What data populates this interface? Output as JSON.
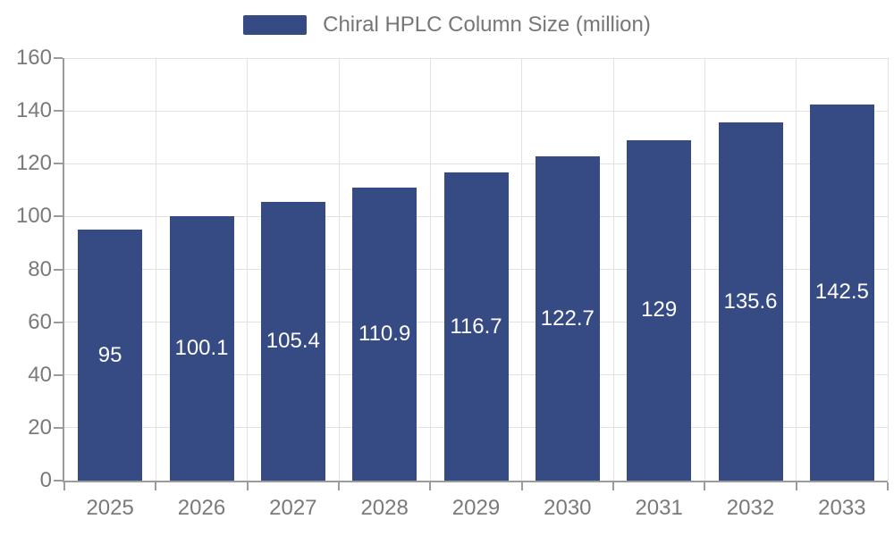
{
  "chart_data": {
    "type": "bar",
    "title": "Chiral HPLC Column Size (million)",
    "categories": [
      "2025",
      "2026",
      "2027",
      "2028",
      "2029",
      "2030",
      "2031",
      "2032",
      "2033"
    ],
    "values": [
      95,
      100.1,
      105.4,
      110.9,
      116.7,
      122.7,
      129,
      135.6,
      142.5
    ],
    "xlabel": "",
    "ylabel": "",
    "ylim": [
      0,
      160
    ],
    "ytick_step": 20,
    "grid": true,
    "legend_position": "top-center",
    "value_labels_inside_bars": true,
    "colors": {
      "bar": "#364a84",
      "grid": "#e2e2e2",
      "axis": "#9b9b9b",
      "tick_label": "#7a7a7a",
      "value_label": "#ffffff",
      "legend_text": "#767676",
      "background": "#ffffff"
    }
  }
}
